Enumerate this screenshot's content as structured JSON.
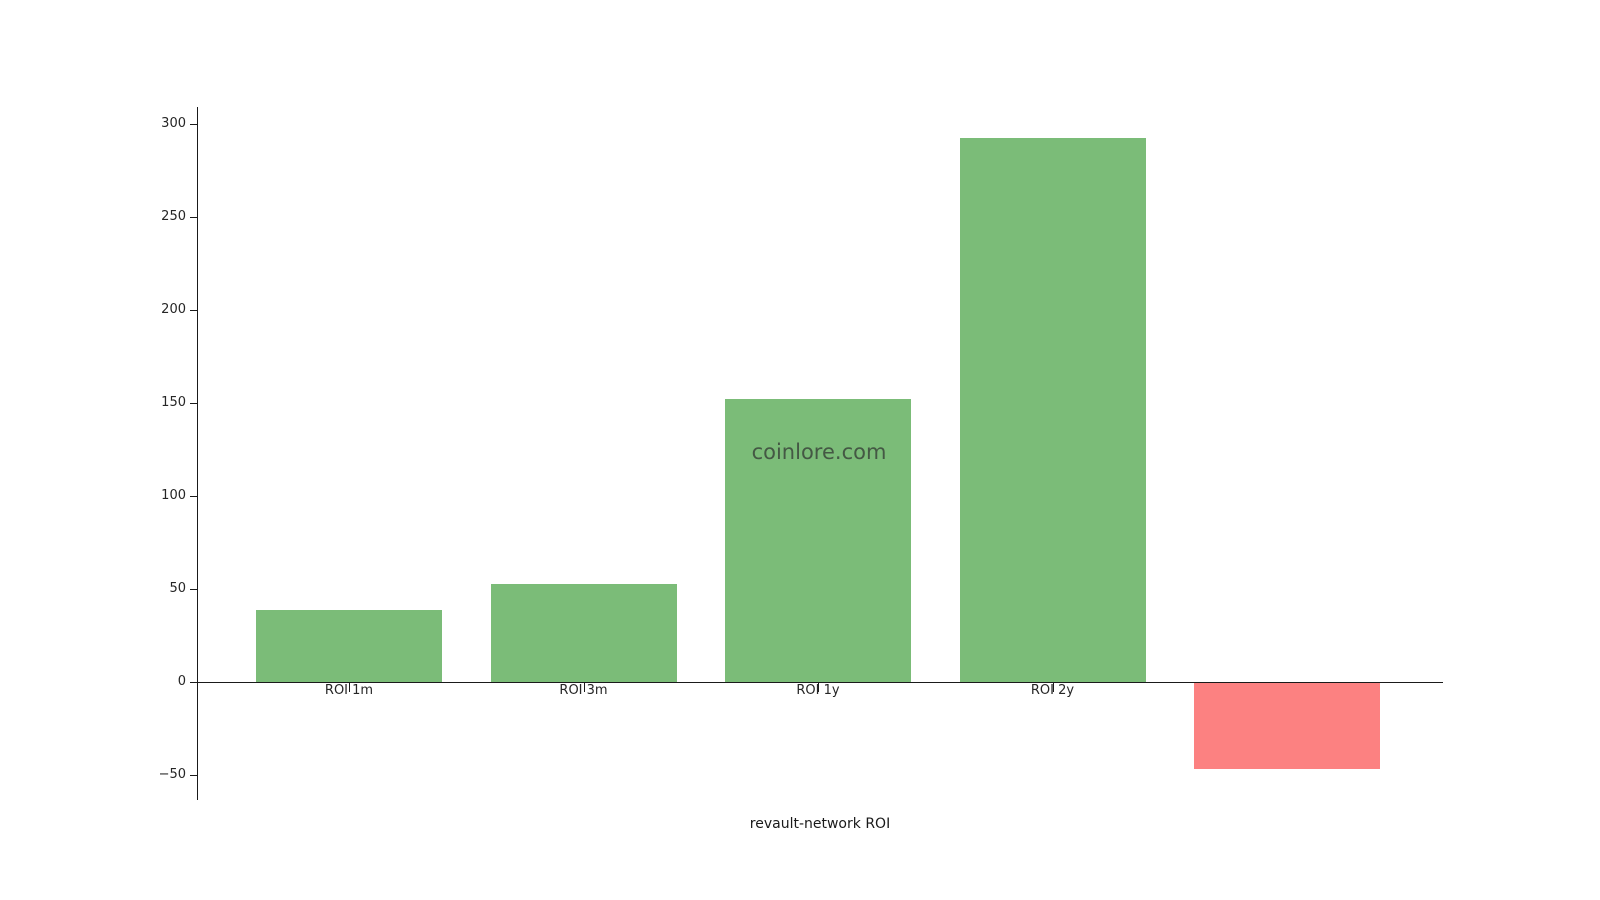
{
  "watermark": {
    "text": "coinlore.com"
  },
  "chart_data": {
    "type": "bar",
    "title": "revault-network ROI",
    "categories": [
      "ROI 1m",
      "ROI 3m",
      "ROI 1y",
      "ROI 2y",
      ""
    ],
    "values": [
      38.7,
      52.7,
      152.1,
      292.4,
      -46.2
    ],
    "ytick_labels": [
      "300",
      "250",
      "200",
      "150",
      "100",
      "50",
      "0",
      "−50"
    ],
    "ytick_values": [
      300,
      250,
      200,
      150,
      100,
      50,
      0,
      -50
    ],
    "ylim": [
      -63,
      309
    ],
    "xlabel": "",
    "ylabel": "",
    "grid": false,
    "legend_position": "none",
    "colors": {
      "positive_bar": "#7bbc78",
      "negative_bar": "#fc8181",
      "axis": "#1a1a1a",
      "tick_text": "#262626",
      "watermark_text": "#373e37"
    }
  }
}
